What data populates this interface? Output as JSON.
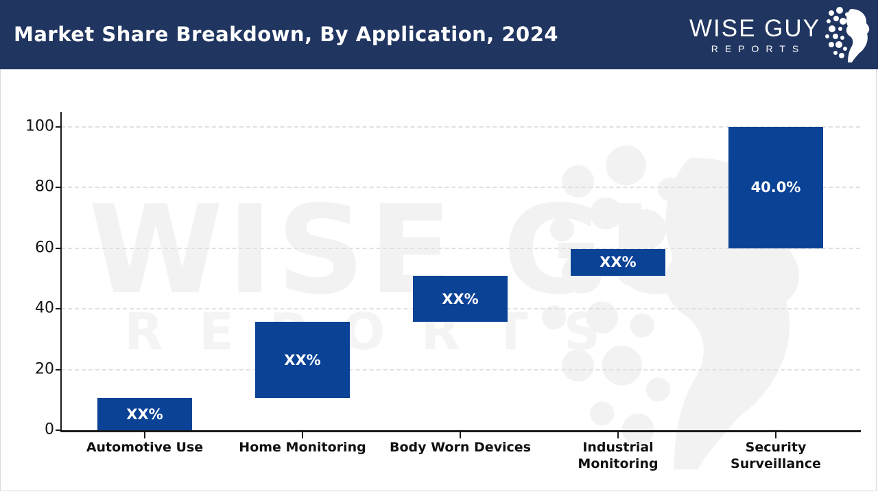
{
  "header": {
    "title": "Market Share Breakdown, By Application, 2024",
    "logo": {
      "line1": "WISE GUY",
      "line2": "REPORTS"
    }
  },
  "watermark": {
    "line1": "WISE GUY",
    "line2": "REPORTS"
  },
  "colors": {
    "header_background": "#203560",
    "bar_blue": "#0a4296",
    "grid_gray": "#e0e0e0",
    "axis_black": "#1a1a1a",
    "watermark_gray": "#f2f2f2",
    "label_white": "#ffffff"
  },
  "chart_data": {
    "type": "bar",
    "subtype": "floating-waterfall",
    "title": "Market Share Breakdown, By Application, 2024",
    "categories": [
      "Automotive Use",
      "Home Monitoring",
      "Body Worn Devices",
      "Industrial\nMonitoring",
      "Security\nSurveillance"
    ],
    "segments": [
      {
        "start": 0,
        "end": 10.6,
        "label": "XX%"
      },
      {
        "start": 10.6,
        "end": 35.7,
        "label": "XX%"
      },
      {
        "start": 35.7,
        "end": 50.9,
        "label": "XX%"
      },
      {
        "start": 50.9,
        "end": 59.8,
        "label": "XX%"
      },
      {
        "start": 60.0,
        "end": 100.0,
        "label": "40.0%"
      }
    ],
    "values": [
      10.6,
      25.1,
      15.2,
      8.9,
      40.0
    ],
    "bar_labels": [
      "XX%",
      "XX%",
      "XX%",
      "XX%",
      "40.0%"
    ],
    "xlabel": "",
    "ylabel": "",
    "ylim": [
      0,
      105
    ],
    "yticks": [
      0,
      20,
      40,
      60,
      80,
      100
    ],
    "grid": "horizontal-dashed",
    "legend": "none",
    "bar_color": "#0a4296"
  }
}
